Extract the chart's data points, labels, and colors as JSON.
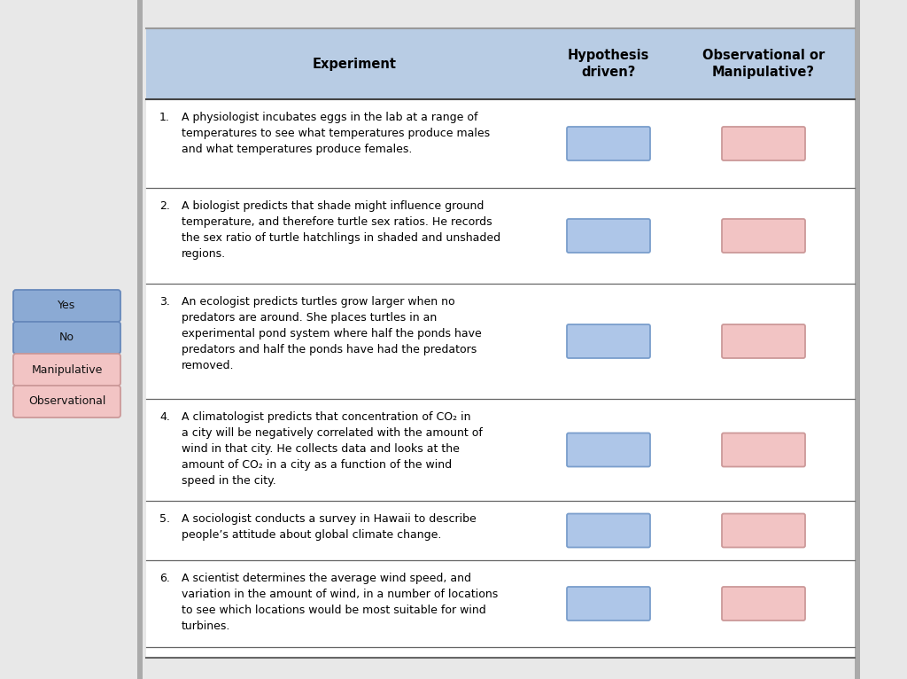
{
  "bg_color": "#e8e8e8",
  "left_panel_bg": "#ffffff",
  "table_bg": "#ffffff",
  "header_bg": "#b8cce4",
  "header_col1": "Experiment",
  "header_col2": "Hypothesis\ndriven?",
  "header_col3": "Observational or\nManipulative?",
  "rows": [
    {
      "number": "1.",
      "text": "A physiologist incubates eggs in the lab at a range of\ntemperatures to see what temperatures produce males\nand what temperatures produce females."
    },
    {
      "number": "2.",
      "text": "A biologist predicts that shade might influence ground\ntemperature, and therefore turtle sex ratios. He records\nthe sex ratio of turtle hatchlings in shaded and unshaded\nregions."
    },
    {
      "number": "3.",
      "text": "An ecologist predicts turtles grow larger when no\npredators are around. She places turtles in an\nexperimental pond system where half the ponds have\npredators and half the ponds have had the predators\nremoved."
    },
    {
      "number": "4.",
      "text": "A climatologist predicts that concentration of CO₂ in\na city will be negatively correlated with the amount of\nwind in that city. He collects data and looks at the\namount of CO₂ in a city as a function of the wind\nspeed in the city."
    },
    {
      "number": "5.",
      "text": "A sociologist conducts a survey in Hawaii to describe\npeople’s attitude about global climate change."
    },
    {
      "number": "6.",
      "text": "A scientist determines the average wind speed, and\nvariation in the amount of wind, in a number of locations\nto see which locations would be most suitable for wind\nturbines."
    }
  ],
  "blue_box_color": "#aec6e8",
  "blue_box_edge": "#7a9ecc",
  "pink_box_color": "#f2c4c4",
  "pink_box_edge": "#cc9999",
  "sidebar_yes_color": "#8baad4",
  "sidebar_yes_edge": "#6688bb",
  "sidebar_no_color": "#8baad4",
  "sidebar_no_edge": "#6688bb",
  "sidebar_manip_color": "#f2c4c4",
  "sidebar_manip_edge": "#cc9999",
  "sidebar_obs_color": "#f2c4c4",
  "sidebar_obs_edge": "#cc9999",
  "sidebar_labels": [
    "Yes",
    "No",
    "Manipulative",
    "Observational"
  ],
  "divider_color": "#666666",
  "header_divider_color": "#444444",
  "font_size_header": 10.5,
  "font_size_body": 9.0,
  "font_size_sidebar": 9.0,
  "left_bar_color": "#888888",
  "right_bar_color": "#aaaaaa"
}
